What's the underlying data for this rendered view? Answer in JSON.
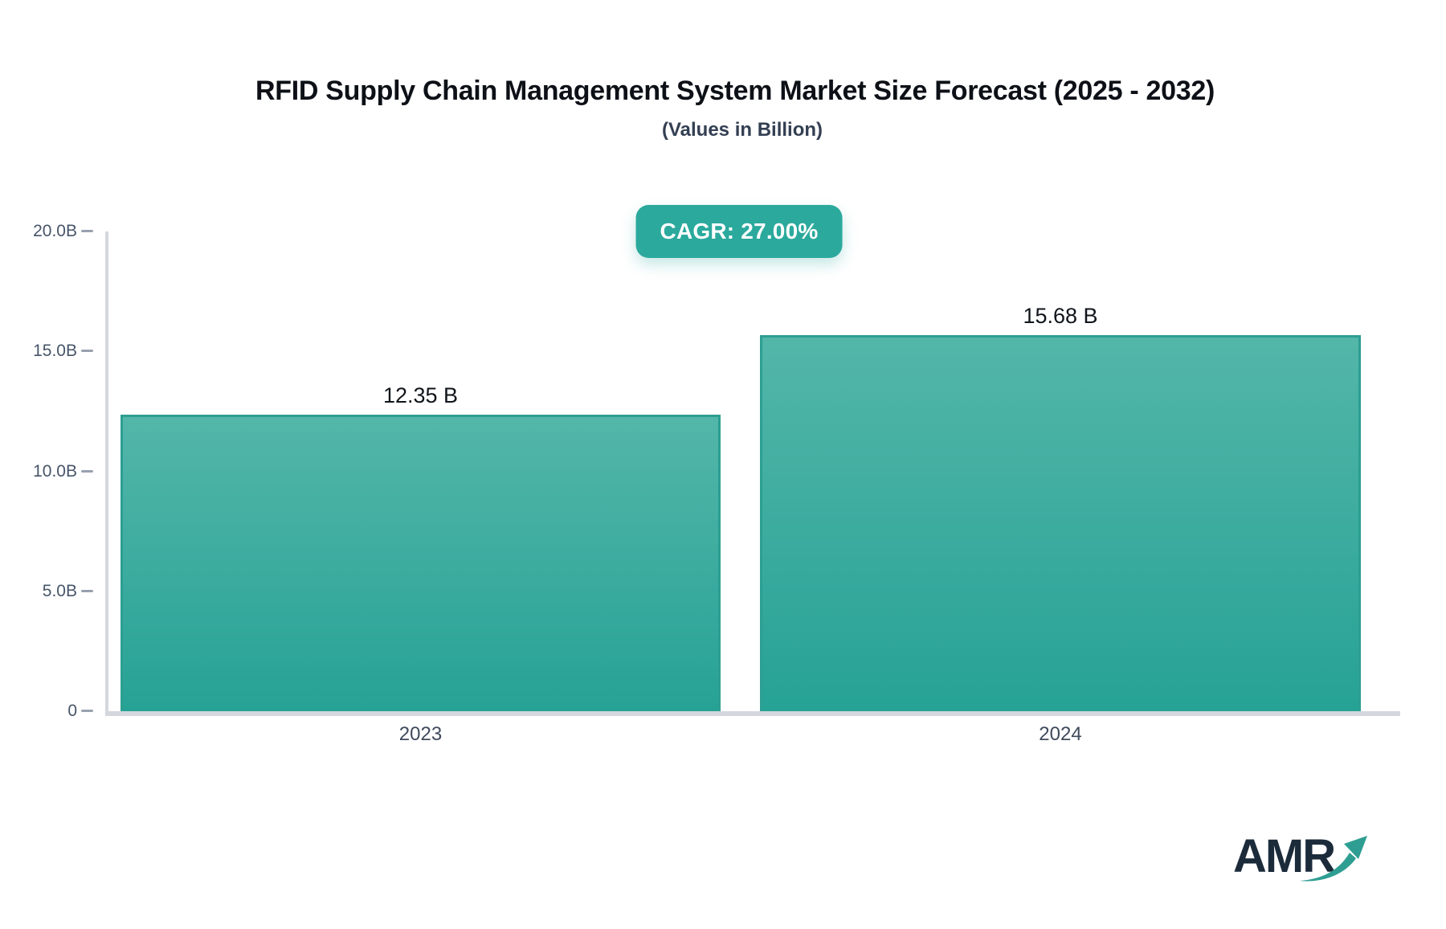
{
  "header": {
    "title": "RFID Supply Chain Management System Market Size Forecast (2025 - 2032)",
    "subtitle": "(Values in Billion)"
  },
  "badge": {
    "label": "CAGR: 27.00%"
  },
  "chart_data": {
    "type": "bar",
    "title": "RFID Supply Chain Management System Market Size Forecast (2025 - 2032)",
    "subtitle": "(Values in Billion)",
    "categories": [
      "2023",
      "2024"
    ],
    "values": [
      12.35,
      15.68
    ],
    "value_labels": [
      "12.35 B",
      "15.68 B"
    ],
    "units": "Billion USD",
    "cagr": "27.00%",
    "ylim": [
      0,
      20
    ],
    "yticks": [
      {
        "label": "20.0B",
        "value": 20
      },
      {
        "label": "15.0B",
        "value": 15
      },
      {
        "label": "10.0B",
        "value": 10
      },
      {
        "label": "5.0B",
        "value": 5
      },
      {
        "label": "0",
        "value": 0
      }
    ],
    "xlabel": "",
    "ylabel": "",
    "grid": false,
    "legend": false
  },
  "colors": {
    "title": "#0d1117",
    "subtitle": "#333f52",
    "badge_bg": "#2ba99d",
    "bar_top": "#53b6a9",
    "bar_bottom": "#26a295",
    "bar_border": "#2d9e92",
    "axis_line": "#d4d7de",
    "tick_dash": "#98a1b0",
    "y_label": "#475569",
    "x_label": "#3f4a5c",
    "value_label": "#10151b",
    "logo_text": "#1b2b3a",
    "logo_arrow": "#2f9e92"
  },
  "logo": {
    "text": "AMR"
  }
}
